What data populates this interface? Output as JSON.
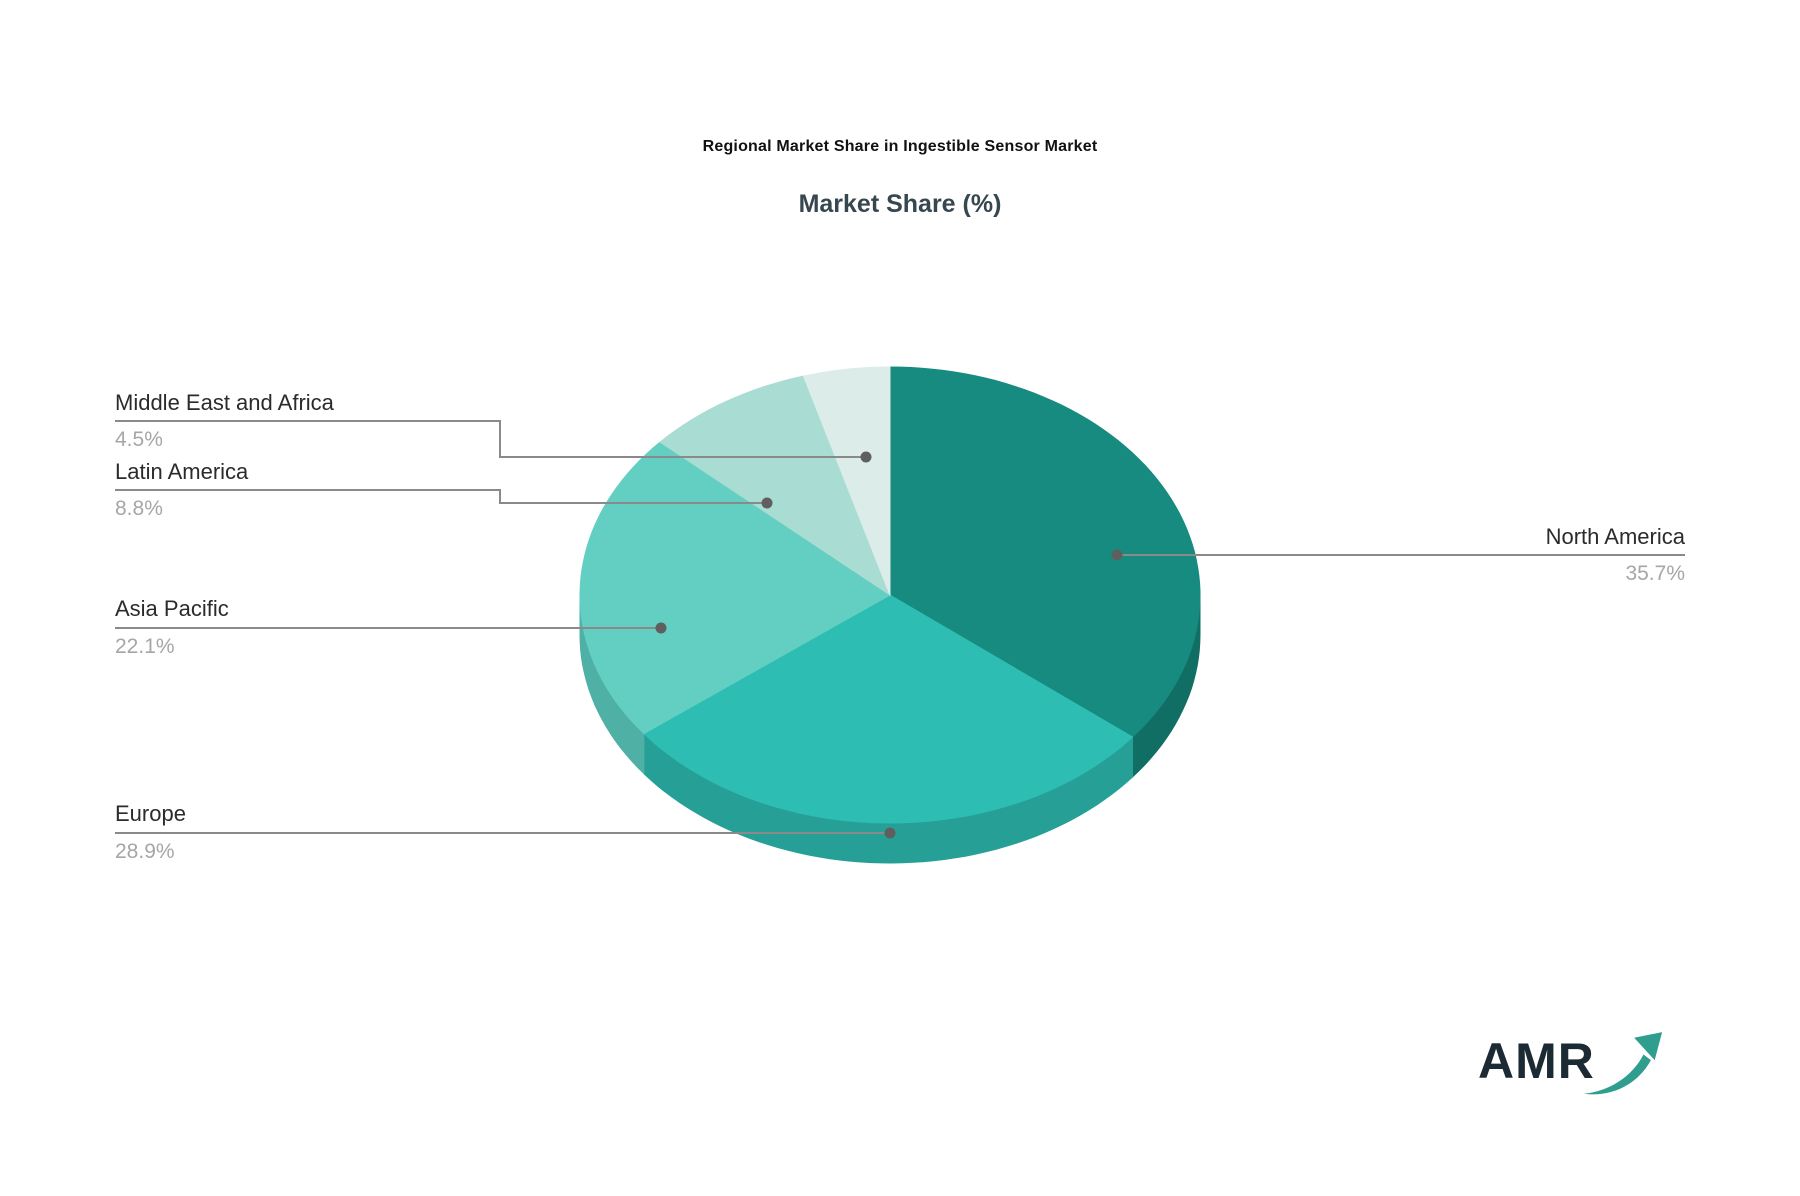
{
  "title": "Regional Market Share in Ingestible Sensor Market",
  "subtitle": "Market Share (%)",
  "logo": {
    "text": "AMR"
  },
  "colors": {
    "background": "#ffffff",
    "leader_line": "#8a8a8a",
    "dot": "#5f5f5f",
    "label_text": "#2b2b2b",
    "pct_text": "#a6a6a6",
    "title": "#111111",
    "subtitle": "#37474f",
    "logo_text": "#1c2b33",
    "logo_arrow": "#2f9e8e"
  },
  "chart_data": {
    "type": "pie",
    "style": "3d-extruded",
    "title": "Regional Market Share in Ingestible Sensor Market",
    "subtitle": "Market Share (%)",
    "unit": "%",
    "start_angle_deg": 0,
    "direction": "clockwise",
    "legend_position": "leader-line labels (left column and right side)",
    "slices": [
      {
        "label": "North America",
        "value": 35.7,
        "display": "35.7%",
        "color": "#178b80",
        "side_color": "#106e64"
      },
      {
        "label": "Europe",
        "value": 28.9,
        "display": "28.9%",
        "color": "#2ebdb2",
        "side_color": "#26a097"
      },
      {
        "label": "Asia Pacific",
        "value": 22.1,
        "display": "22.1%",
        "color": "#63cfc3",
        "side_color": "#4fb0a5"
      },
      {
        "label": "Latin America",
        "value": 8.8,
        "display": "8.8%",
        "color": "#a9ddd4",
        "side_color": "#8fc4bb"
      },
      {
        "label": "Middle East and Africa",
        "value": 4.5,
        "display": "4.5%",
        "color": "#dcede9",
        "side_color": "#c2d8d3"
      }
    ]
  }
}
